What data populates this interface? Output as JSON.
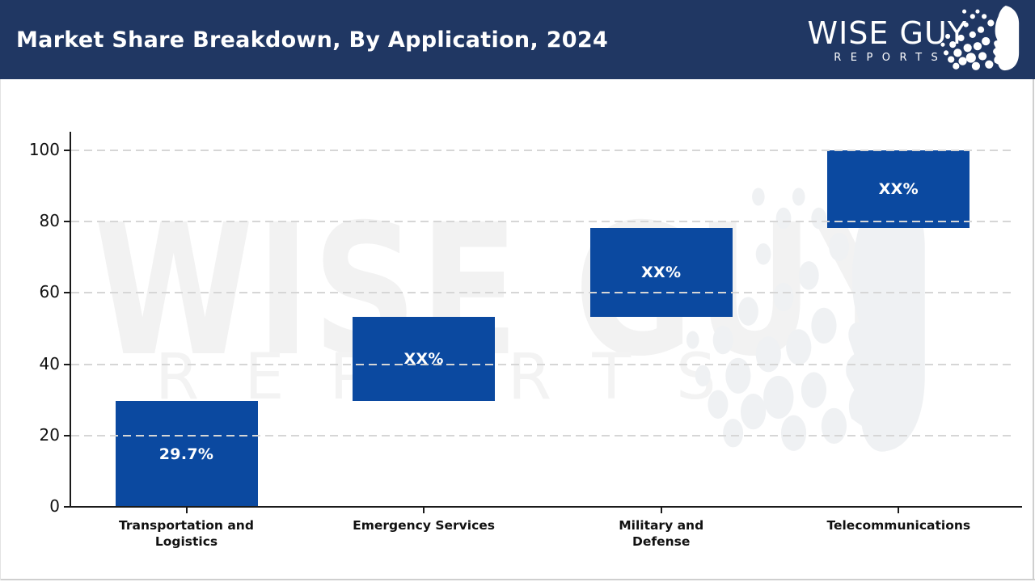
{
  "header": {
    "title": "Market Share Breakdown, By Application, 2024",
    "logo_primary": "WISE GUY",
    "logo_secondary": "REPORTS"
  },
  "watermark": {
    "primary": "WISE GUY",
    "secondary": "REPORTS"
  },
  "chart_data": {
    "type": "bar",
    "variant": "waterfall",
    "title": "Market Share Breakdown, By Application, 2024",
    "categories": [
      "Transportation and\nLogistics",
      "Emergency Services",
      "Military and\nDefense",
      "Telecommunications"
    ],
    "segments": [
      {
        "category": "Transportation and\nLogistics",
        "start": 0,
        "end": 29.7,
        "label": "29.7%"
      },
      {
        "category": "Emergency Services",
        "start": 29.7,
        "end": 53.3,
        "label": "XX%"
      },
      {
        "category": "Military and\nDefense",
        "start": 53.3,
        "end": 78.2,
        "label": "XX%"
      },
      {
        "category": "Telecommunications",
        "start": 78.2,
        "end": 100,
        "label": "XX%"
      }
    ],
    "y_ticks": [
      0,
      20,
      40,
      60,
      80,
      100
    ],
    "ylim": [
      0,
      105
    ],
    "grid": {
      "horizontal": true,
      "style": "dashed",
      "color": "#d6d6d6"
    },
    "bar_color": "#0b49a0",
    "value_label_color": "#ffffff",
    "axis_color": "#1a1a1a",
    "header_color": "#203763",
    "legend": null
  }
}
